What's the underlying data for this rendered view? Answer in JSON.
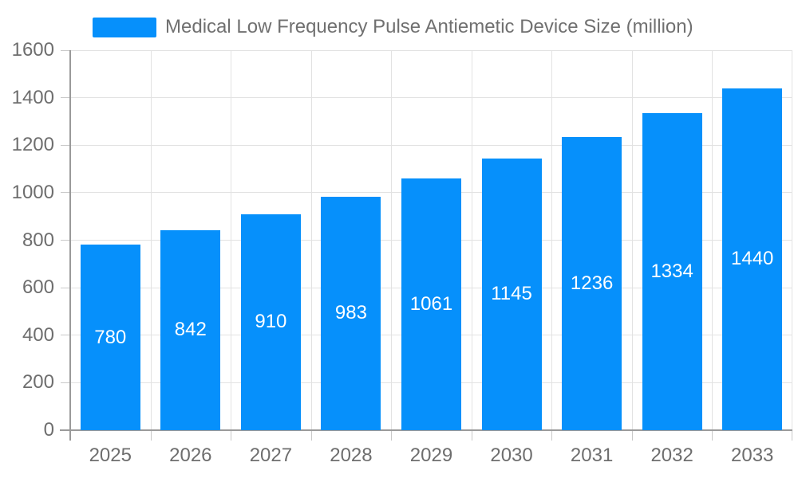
{
  "legend": {
    "label": "Medical Low Frequency Pulse Antiemetic Device Size (million)",
    "swatch_color": "#0690FB"
  },
  "chart_data": {
    "type": "bar",
    "title": "Medical Low Frequency Pulse Antiemetic Device Size (million)",
    "categories": [
      "2025",
      "2026",
      "2027",
      "2028",
      "2029",
      "2030",
      "2031",
      "2032",
      "2033"
    ],
    "values": [
      780,
      842,
      910,
      983,
      1061,
      1145,
      1236,
      1334,
      1440
    ],
    "xlabel": "",
    "ylabel": "",
    "ylim": [
      0,
      1600
    ],
    "ytick_step": 200,
    "y_ticks": [
      "0",
      "200",
      "400",
      "600",
      "800",
      "1000",
      "1200",
      "1400",
      "1600"
    ],
    "grid": true,
    "legend_position": "top-left",
    "value_labels": "inside-center",
    "bar_color": "#0690FB",
    "value_label_color": "#ffffff",
    "gridline_color": "#E2E2E2",
    "axis_color": "#9A9A9A",
    "tick_color": "#C9C9C9",
    "text_color": "#6E6E6E"
  }
}
